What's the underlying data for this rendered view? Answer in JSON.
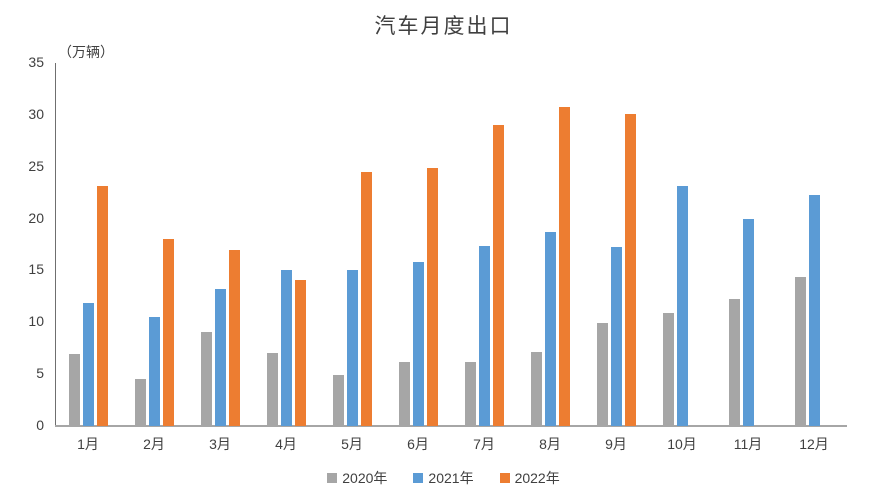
{
  "chart_data": {
    "type": "bar",
    "title": "汽车月度出口",
    "unit_label": "（万辆）",
    "categories": [
      "1月",
      "2月",
      "3月",
      "4月",
      "5月",
      "6月",
      "7月",
      "8月",
      "9月",
      "10月",
      "11月",
      "12月"
    ],
    "series": [
      {
        "name": "2020年",
        "color": "#A6A6A6",
        "values": [
          6.9,
          4.5,
          9.1,
          7.0,
          4.9,
          6.2,
          6.2,
          7.1,
          9.9,
          10.9,
          12.2,
          14.4
        ]
      },
      {
        "name": "2021年",
        "color": "#5B9BD5",
        "values": [
          11.9,
          10.5,
          13.2,
          15.0,
          15.0,
          15.8,
          17.4,
          18.7,
          17.3,
          23.1,
          20.0,
          22.3
        ]
      },
      {
        "name": "2022年",
        "color": "#ED7D31",
        "values": [
          23.1,
          18.0,
          17.0,
          14.1,
          24.5,
          24.9,
          29.0,
          30.8,
          30.1,
          null,
          null,
          null
        ]
      }
    ],
    "xlabel": "",
    "ylabel": "（万辆）",
    "ylim": [
      0,
      35
    ],
    "ytick_step": 5,
    "grid": false,
    "legend_position": "bottom"
  }
}
